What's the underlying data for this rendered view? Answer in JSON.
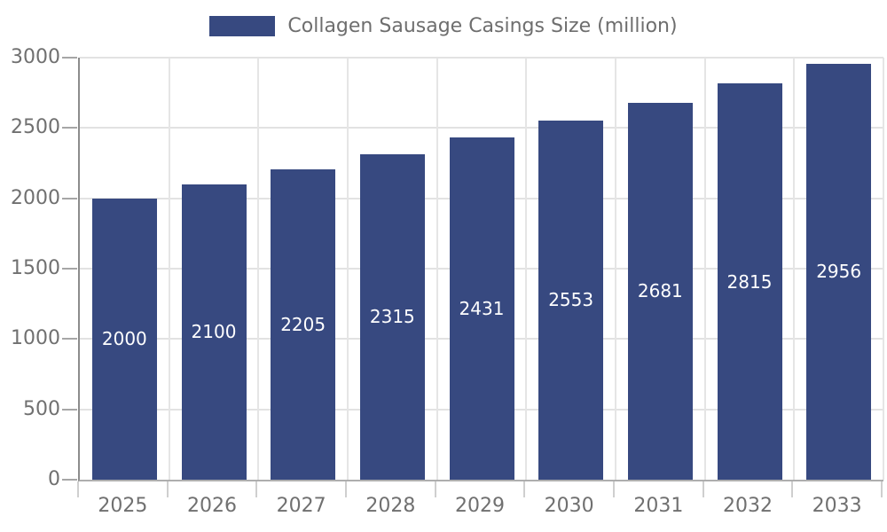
{
  "legend": {
    "position": "top-center"
  },
  "colors": {
    "bar": "#374980",
    "legend_text": "#6e6e6e",
    "axis_text": "#707070",
    "value_label_text": "#ffffff"
  },
  "chart_data": {
    "type": "bar",
    "title": "",
    "categories": [
      "2025",
      "2026",
      "2027",
      "2028",
      "2029",
      "2030",
      "2031",
      "2032",
      "2033"
    ],
    "series": [
      {
        "name": "Collagen Sausage Casings Size (million)",
        "values": [
          2000,
          2100,
          2205,
          2315,
          2431,
          2553,
          2681,
          2815,
          2956
        ]
      }
    ],
    "xlabel": "",
    "ylabel": "",
    "ylim": [
      0,
      3000
    ],
    "yticks": [
      0,
      500,
      1000,
      1500,
      2000,
      2500,
      3000
    ],
    "grid": true,
    "legend_position": "top",
    "value_labels_position": "inside-middle"
  }
}
